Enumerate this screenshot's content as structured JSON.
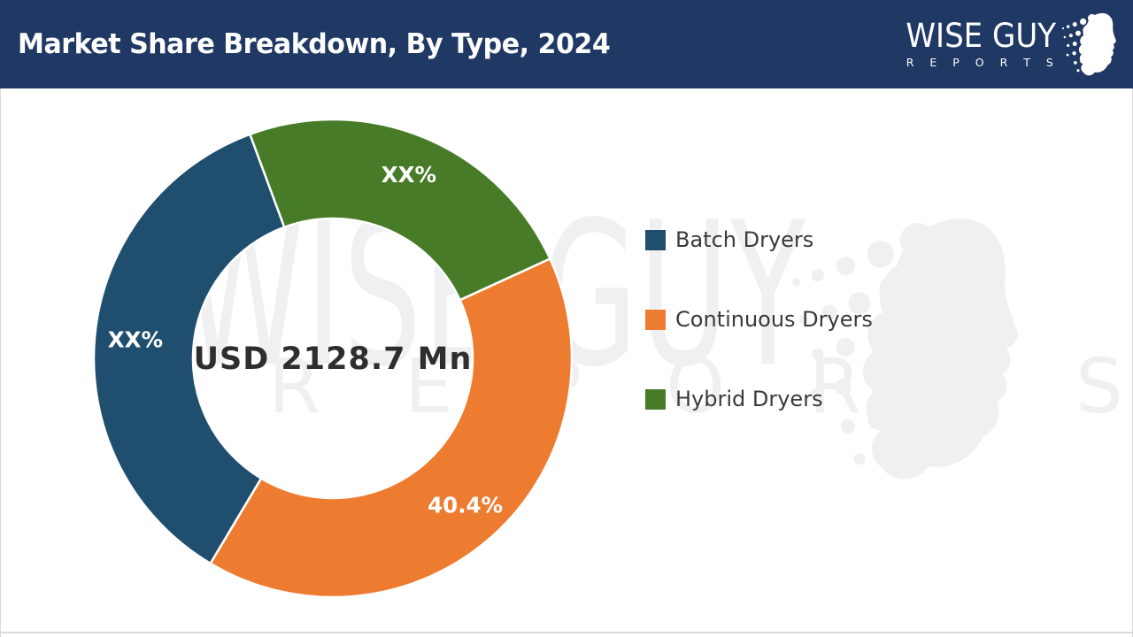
{
  "header": {
    "title": "Market Share Breakdown, By Type, 2024",
    "logo": {
      "name_line": "WISE GUY",
      "reports_line": "R E P O R T S"
    }
  },
  "watermark": {
    "name_line": "WISE GUY",
    "reports_line": "R E P O R T S"
  },
  "chart_data": {
    "type": "donut",
    "title": "Market Share Breakdown, By Type, 2024",
    "center_label": "USD 2128.7 Mn",
    "total_value": 2128.7,
    "total_unit": "USD Mn",
    "start_angle_deg": -20.3,
    "slices": [
      {
        "name": "Hybrid Dryers",
        "display_label": "XX%",
        "value_pct": 23.8,
        "pct_shown": false,
        "color": "#477B28"
      },
      {
        "name": "Continuous Dryers",
        "display_label": "40.4%",
        "value_pct": 40.4,
        "pct_shown": true,
        "color": "#EE7C30"
      },
      {
        "name": "Batch Dryers",
        "display_label": "XX%",
        "value_pct": 35.8,
        "pct_shown": false,
        "color": "#1F4E6E"
      }
    ],
    "legend": [
      {
        "label": "Batch Dryers",
        "color": "#1F4E6E"
      },
      {
        "label": "Continuous Dryers",
        "color": "#EE7C30"
      },
      {
        "label": "Hybrid Dryers",
        "color": "#477B28"
      }
    ],
    "legend_position": "right",
    "colors": {
      "header_navy": "#1F3864",
      "label_text": "#FFFFFF",
      "center_text": "#2E2E2E",
      "watermark": "#F0F0F2"
    }
  }
}
